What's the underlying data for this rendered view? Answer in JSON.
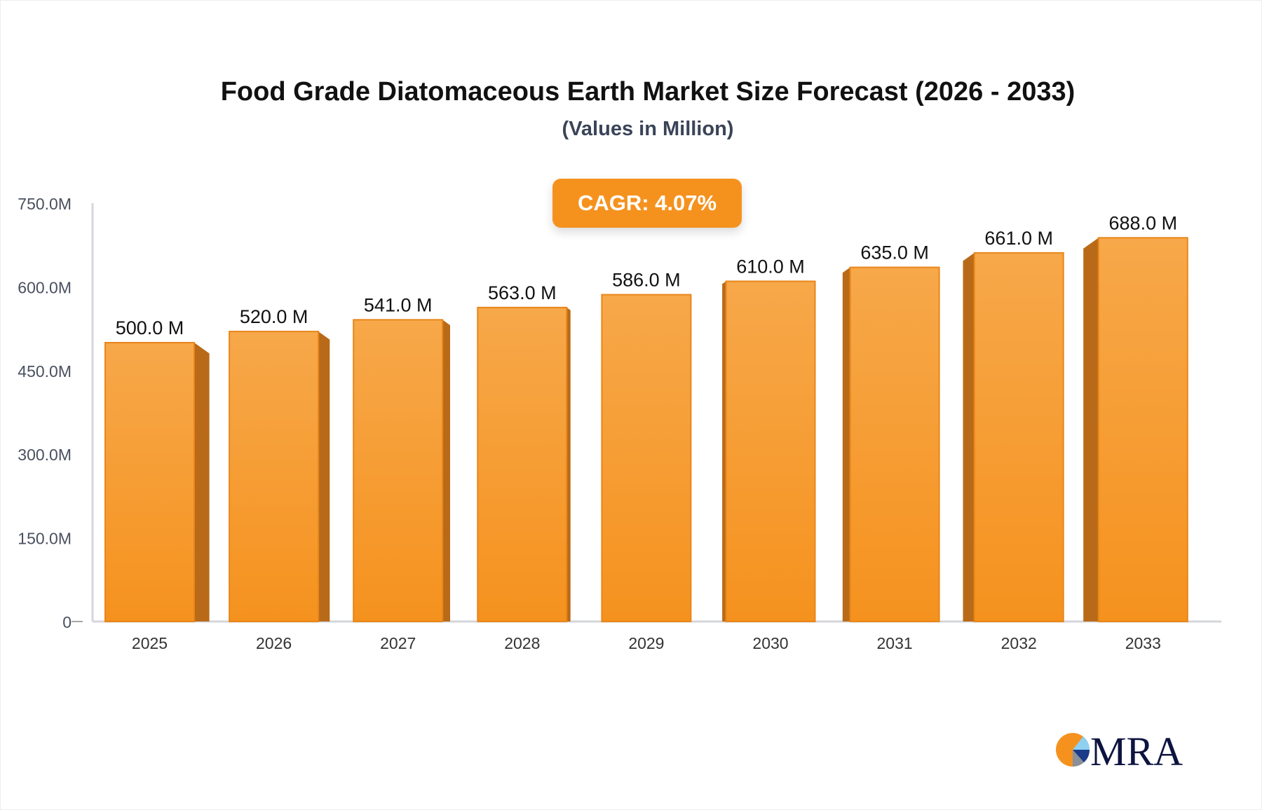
{
  "chart_data": {
    "type": "bar",
    "title": "Food Grade Diatomaceous Earth Market Size Forecast (2026 - 2033)",
    "subtitle": "(Values in Million)",
    "annotation": "CAGR: 4.07%",
    "categories": [
      "2025",
      "2026",
      "2027",
      "2028",
      "2029",
      "2030",
      "2031",
      "2032",
      "2033"
    ],
    "values": [
      500.0,
      520.0,
      541.0,
      563.0,
      586.0,
      610.0,
      635.0,
      661.0,
      688.0
    ],
    "data_labels": [
      "500.0 M",
      "520.0 M",
      "541.0 M",
      "563.0 M",
      "586.0 M",
      "610.0 M",
      "635.0 M",
      "661.0 M",
      "688.0 M"
    ],
    "yticks": [
      0,
      150,
      300,
      450,
      600,
      750
    ],
    "ytick_labels": [
      "0",
      "150.0M",
      "300.0M",
      "450.0M",
      "600.0M",
      "750.0M"
    ],
    "ylim": [
      0,
      750
    ],
    "xlabel": "",
    "ylabel": "",
    "grid": false,
    "colors": {
      "bar_front_top": "#f7a84a",
      "bar_front_bottom": "#f5921e",
      "bar_side": "#b96a18",
      "axis": "#d4d6dc"
    }
  },
  "logo": {
    "text": "MRA"
  }
}
